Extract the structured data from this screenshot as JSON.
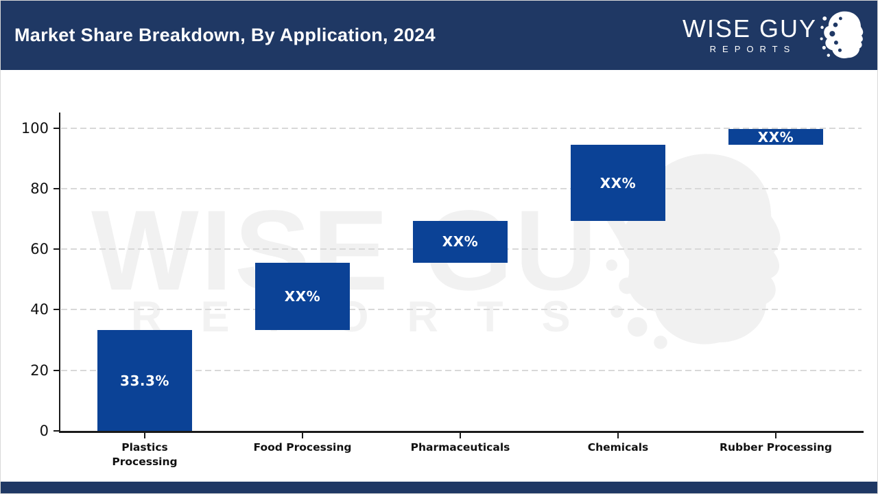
{
  "header": {
    "title": "Market Share Breakdown, By Application, 2024",
    "brand": {
      "line1": "WISE GUY",
      "line2": "REPORTS"
    }
  },
  "watermark": {
    "line1": "WISE GUY",
    "line2": "REPORTS"
  },
  "colors": {
    "header_bg": "#1F3864",
    "footer_bg": "#1F3864",
    "bar": "#0B4296",
    "bar_label": "#ffffff",
    "grid": "#d8d8d8",
    "axis": "#1a1a1a",
    "tick_text": "#111111",
    "watermark": "#f1f1f1"
  },
  "chart_data": {
    "type": "bar",
    "subtype": "waterfall",
    "title": "Market Share Breakdown, By Application, 2024",
    "xlabel": "",
    "ylabel": "",
    "ylim": [
      0,
      104.7
    ],
    "yticks": [
      0,
      20,
      40,
      60,
      80,
      100
    ],
    "grid": "horizontal-dashed",
    "legend": "none",
    "categories": [
      "Plastics Processing",
      "Food Processing",
      "Pharmaceuticals",
      "Chemicals",
      "Rubber Processing"
    ],
    "category_label_lines": [
      [
        "Plastics",
        "Processing"
      ],
      [
        "Food Processing"
      ],
      [
        "Pharmaceuticals"
      ],
      [
        "Chemicals"
      ],
      [
        "Rubber Processing"
      ]
    ],
    "segments": [
      {
        "category": "Plastics Processing",
        "start": 0,
        "end": 33.3,
        "bar_label": "33.3%"
      },
      {
        "category": "Food Processing",
        "start": 33.3,
        "end": 55.5,
        "bar_label": "XX%"
      },
      {
        "category": "Pharmaceuticals",
        "start": 55.5,
        "end": 69.4,
        "bar_label": "XX%"
      },
      {
        "category": "Chemicals",
        "start": 69.4,
        "end": 94.4,
        "bar_label": "XX%"
      },
      {
        "category": "Rubber Processing",
        "start": 94.4,
        "end": 99.7,
        "bar_label": "XX%"
      }
    ]
  }
}
